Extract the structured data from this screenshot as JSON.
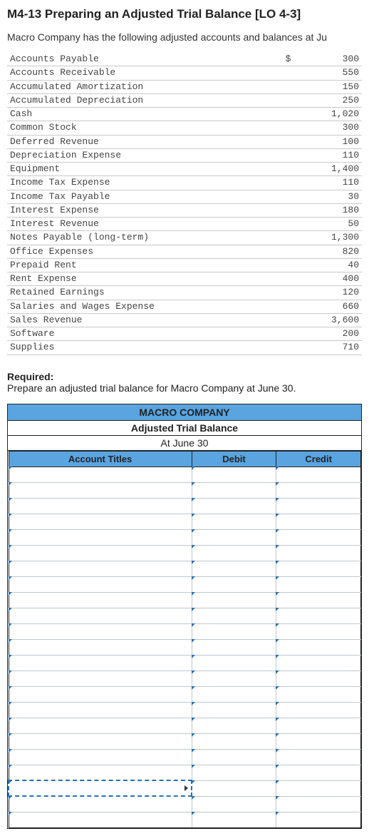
{
  "title": "M4-13 Preparing an Adjusted Trial Balance [LO 4-3]",
  "intro": "Macro Company has the following adjusted accounts and balances at Ju",
  "currency_symbol": "$",
  "accounts": [
    {
      "name": "Accounts Payable",
      "sym": "$",
      "value": "300"
    },
    {
      "name": "Accounts Receivable",
      "sym": "",
      "value": "550"
    },
    {
      "name": "Accumulated Amortization",
      "sym": "",
      "value": "150"
    },
    {
      "name": "Accumulated Depreciation",
      "sym": "",
      "value": "250"
    },
    {
      "name": "Cash",
      "sym": "",
      "value": "1,020"
    },
    {
      "name": "Common Stock",
      "sym": "",
      "value": "300"
    },
    {
      "name": "Deferred Revenue",
      "sym": "",
      "value": "100"
    },
    {
      "name": "Depreciation Expense",
      "sym": "",
      "value": "110"
    },
    {
      "name": "Equipment",
      "sym": "",
      "value": "1,400"
    },
    {
      "name": "Income Tax Expense",
      "sym": "",
      "value": "110"
    },
    {
      "name": "Income Tax Payable",
      "sym": "",
      "value": "30"
    },
    {
      "name": "Interest Expense",
      "sym": "",
      "value": "180"
    },
    {
      "name": "Interest Revenue",
      "sym": "",
      "value": "50"
    },
    {
      "name": "Notes Payable (long-term)",
      "sym": "",
      "value": "1,300"
    },
    {
      "name": "Office Expenses",
      "sym": "",
      "value": "820"
    },
    {
      "name": "Prepaid Rent",
      "sym": "",
      "value": "40"
    },
    {
      "name": "Rent Expense",
      "sym": "",
      "value": "400"
    },
    {
      "name": "Retained Earnings",
      "sym": "",
      "value": "120"
    },
    {
      "name": "Salaries and Wages Expense",
      "sym": "",
      "value": "660"
    },
    {
      "name": "Sales Revenue",
      "sym": "",
      "value": "3,600"
    },
    {
      "name": "Software",
      "sym": "",
      "value": "200"
    },
    {
      "name": "Supplies",
      "sym": "",
      "value": "710"
    }
  ],
  "required": {
    "label": "Required:",
    "text": "Prepare an adjusted trial balance for Macro Company at June 30."
  },
  "trial_balance": {
    "company": "MACRO COMPANY",
    "heading": "Adjusted Trial Balance",
    "date": "At June 30",
    "columns": {
      "title": "Account Titles",
      "debit": "Debit",
      "credit": "Credit"
    },
    "row_count": 23,
    "active_row_index": 20,
    "colors": {
      "header_bg": "#5aa4e0",
      "border": "#222222",
      "cell_border": "#bfc8d0",
      "marker": "#2a6fb0"
    }
  }
}
